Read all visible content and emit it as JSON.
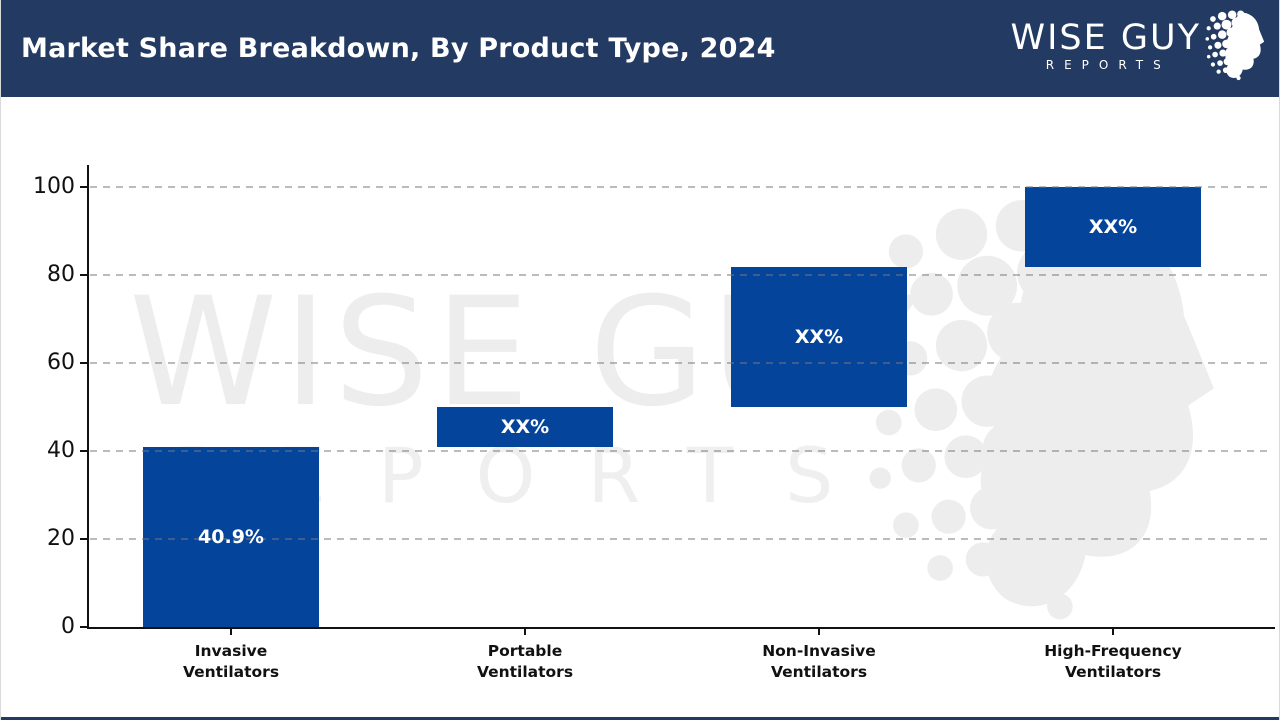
{
  "header": {
    "title": "Market Share Breakdown, By Product Type, 2024",
    "logo": {
      "line1": "WISE GUY",
      "line2": "REPORTS"
    }
  },
  "watermark": {
    "line1": "WISE GUY",
    "line2": "REPORTS"
  },
  "colors": {
    "header_bg": "#233A63",
    "bar_blue": "#05449B",
    "title_text": "#FFFFFF",
    "axis": "#111111",
    "grid": "#9B9B9B",
    "watermark": "#EDEDED"
  },
  "chart_data": {
    "type": "bar",
    "subtype": "waterfall",
    "title": "Market Share Breakdown, By Product Type, 2024",
    "xlabel": "",
    "ylabel": "",
    "ylim": [
      0,
      103
    ],
    "yticks": [
      0,
      20,
      40,
      60,
      80,
      100
    ],
    "grid": "horizontal-dashed",
    "legend": "none",
    "bar_color": "#05449B",
    "categories": [
      "Invasive\nVentilators",
      "Portable\nVentilators",
      "Non-Invasive\nVentilators",
      "High-Frequency\nVentilators"
    ],
    "bars": [
      {
        "category": "Invasive Ventilators",
        "label": "40.9%",
        "start": 0,
        "end": 40.9
      },
      {
        "category": "Portable Ventilators",
        "label": "XX%",
        "start": 40.9,
        "end": 50.0
      },
      {
        "category": "Non-Invasive Ventilators",
        "label": "XX%",
        "start": 50.0,
        "end": 81.8
      },
      {
        "category": "High-Frequency Ventilators",
        "label": "XX%",
        "start": 81.8,
        "end": 100.0
      }
    ]
  }
}
